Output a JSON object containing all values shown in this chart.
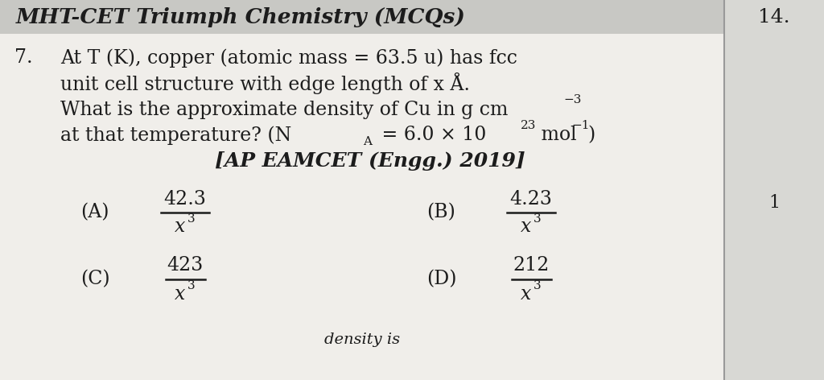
{
  "title": "MHT-CET Triumph Chemistry (MCQs)",
  "question_num": "7.",
  "q_line1": "At T (K), copper (atomic mass = 63.5 u) has fcc",
  "q_line2": "unit cell structure with edge length of x Å.",
  "q_line3a": "What is the approximate density of Cu in g cm",
  "q_line3_sup": "−3",
  "q_line4a": "at that temperature? (N",
  "q_line4_sub": "A",
  "q_line4b": " = 6.0 × 10",
  "q_line4_sup": "23",
  "q_line4c": " mol",
  "q_line4_sup2": "−1",
  "q_line4d": ")",
  "reference": "[AP EAMCET (Engg.) 2019]",
  "optA_label": "(A)",
  "optA_num": "42.3",
  "optA_den": "x",
  "optA_den_sup": "3",
  "optB_label": "(B)",
  "optB_num": "4.23",
  "optB_den": "x",
  "optB_den_sup": "3",
  "optC_label": "(C)",
  "optC_num": "423",
  "optC_den": "x",
  "optC_den_sup": "3",
  "optD_label": "(D)",
  "optD_num": "212",
  "optD_den": "x",
  "optD_den_sup": "3",
  "num14": "14.",
  "num1": "1",
  "bg_color": "#e8e8e6",
  "content_bg": "#f0eeea",
  "header_bg": "#c8c8c4",
  "text_color": "#1c1c1c",
  "divider_color": "#999999"
}
